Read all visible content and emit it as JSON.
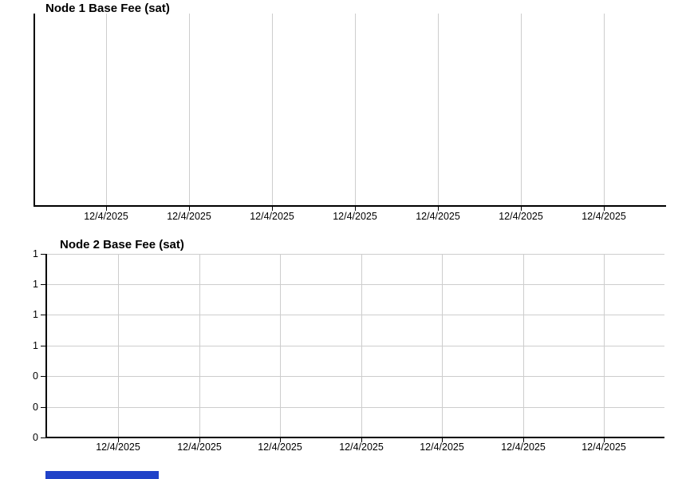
{
  "chart_data": [
    {
      "type": "line",
      "title": "Node 1 Base Fee (sat)",
      "xlabel": "",
      "ylabel": "",
      "x_tick_labels": [
        "12/4/2025",
        "12/4/2025",
        "12/4/2025",
        "12/4/2025",
        "12/4/2025",
        "12/4/2025",
        "12/4/2025"
      ],
      "y_tick_labels": [],
      "series": [],
      "grid": "vertical-only",
      "legend": false,
      "note": "empty plot area - no data series rendered"
    },
    {
      "type": "line",
      "title": "Node 2 Base Fee (sat)",
      "xlabel": "",
      "ylabel": "",
      "x_tick_labels": [
        "12/4/2025",
        "12/4/2025",
        "12/4/2025",
        "12/4/2025",
        "12/4/2025",
        "12/4/2025",
        "12/4/2025"
      ],
      "y_tick_labels": [
        "1",
        "1",
        "1",
        "1",
        "0",
        "0",
        "0"
      ],
      "ylim": [
        0,
        1.2
      ],
      "series": [],
      "grid": "both",
      "legend": false,
      "note": "empty plot area - no data series rendered"
    }
  ],
  "colors": {
    "axis": "#000000",
    "gridline": "#cdcdcd",
    "text": "#000000",
    "blue_bar": "#2042c8"
  }
}
